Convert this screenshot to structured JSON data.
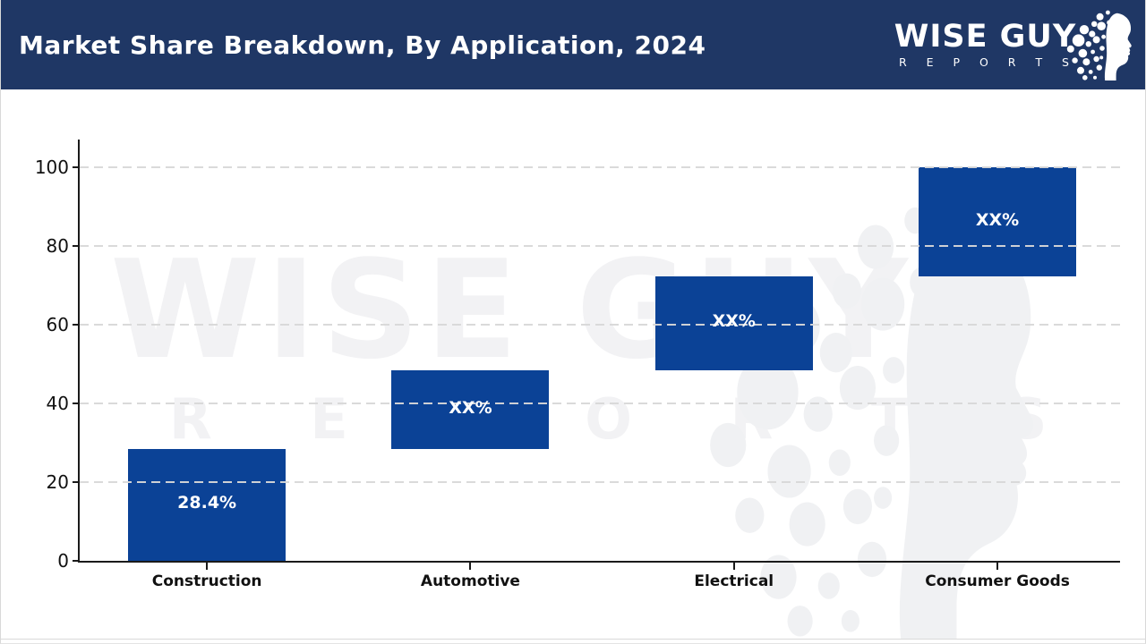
{
  "header": {
    "title": "Market Share Breakdown, By Application, 2024",
    "bg_color": "#1f3765",
    "logo": {
      "brand_top": "WISE GUY",
      "brand_bottom": "R E P O R T S"
    }
  },
  "watermark": {
    "line1": "WISE GUY",
    "line2": "R E P O R T S"
  },
  "chart_data": {
    "type": "bar",
    "subtype": "waterfall-floating-bars",
    "title": "Market Share Breakdown, By Application, 2024",
    "xlabel": "",
    "ylabel": "",
    "categories": [
      "Construction",
      "Automotive",
      "Electrical",
      "Consumer Goods"
    ],
    "segments": [
      {
        "category": "Construction",
        "start": 0,
        "end": 28.4,
        "label": "28.4%"
      },
      {
        "category": "Automotive",
        "start": 28.4,
        "end": 48.4,
        "label": "XX%"
      },
      {
        "category": "Electrical",
        "start": 48.4,
        "end": 72.2,
        "label": "XX%"
      },
      {
        "category": "Consumer Goods",
        "start": 72.2,
        "end": 100,
        "label": "XX%"
      }
    ],
    "yticks": [
      0,
      20,
      40,
      60,
      80,
      100
    ],
    "ylim": [
      0,
      107
    ],
    "bar_color": "#0b4296",
    "bar_label_color": "#ffffff",
    "axis_color": "#1a1a1a",
    "grid": "horizontal dashed, light gray, drawn above bars",
    "legend": "none"
  }
}
